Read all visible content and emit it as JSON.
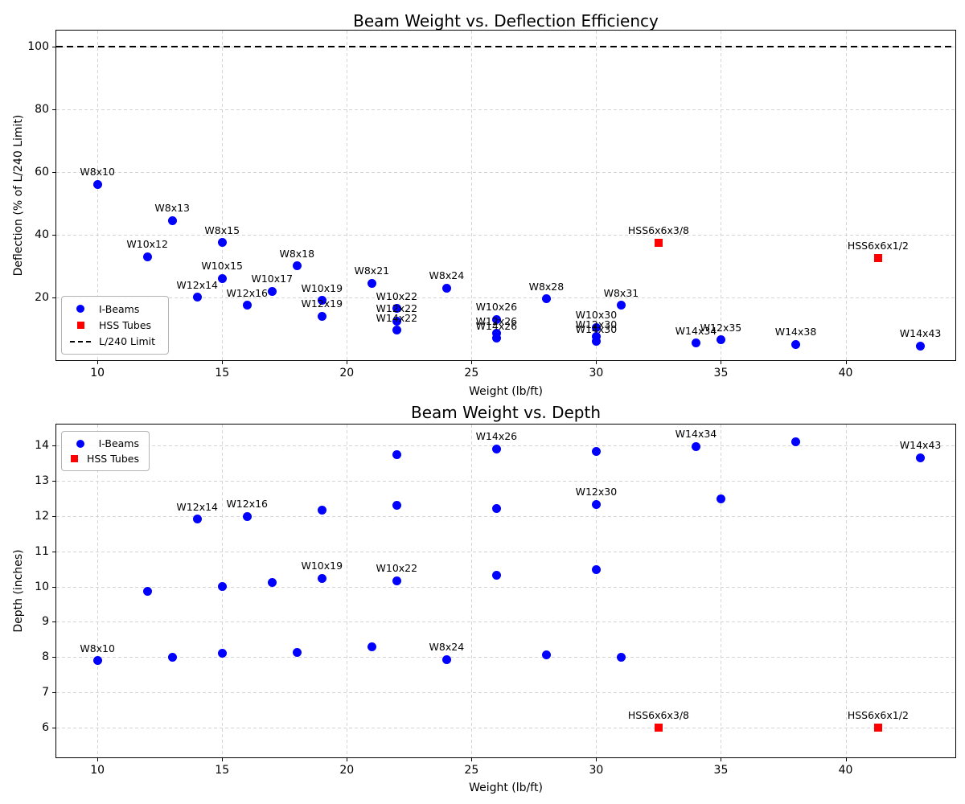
{
  "figure": {
    "background": "#ffffff"
  },
  "colors": {
    "ibeam": "#0000ff",
    "hss": "#ff0000",
    "refline": "#000000",
    "grid": "#d4d4d4"
  },
  "chart_data": {
    "type": "scatter",
    "charts": [
      {
        "id": "deflection",
        "title": "Beam Weight vs. Deflection Efficiency",
        "xlabel": "Weight (lb/ft)",
        "ylabel": "Deflection (% of L/240 Limit)",
        "x_field": "weight",
        "y_field": "deflection_pct",
        "label_mode": "all",
        "xlim": [
          8.35,
          44.4
        ],
        "ylim": [
          0,
          105
        ],
        "xticks": [
          10,
          15,
          20,
          25,
          30,
          35,
          40
        ],
        "yticks": [
          20,
          40,
          60,
          80,
          100
        ],
        "grid": true,
        "refline": {
          "y": 100,
          "label": "L/240 Limit",
          "style": "dashed",
          "color": "#000000"
        },
        "legend": {
          "position": "lower-left",
          "entries": [
            {
              "label": "I-Beams",
              "marker": "circle",
              "color": "#0000ff"
            },
            {
              "label": "HSS Tubes",
              "marker": "square",
              "color": "#ff0000"
            },
            {
              "label": "L/240 Limit",
              "marker": "dashed-line",
              "color": "#000000"
            }
          ]
        }
      },
      {
        "id": "depth",
        "title": "Beam Weight vs. Depth",
        "xlabel": "Weight (lb/ft)",
        "ylabel": "Depth (inches)",
        "x_field": "weight",
        "y_field": "depth_in",
        "label_mode": "flagged",
        "label_flag": "depth_labeled",
        "xlim": [
          8.35,
          44.4
        ],
        "ylim": [
          5.15,
          14.6
        ],
        "xticks": [
          10,
          15,
          20,
          25,
          30,
          35,
          40
        ],
        "yticks": [
          6,
          7,
          8,
          9,
          10,
          11,
          12,
          13,
          14
        ],
        "grid": true,
        "refline": null,
        "legend": {
          "position": "upper-left",
          "entries": [
            {
              "label": "I-Beams",
              "marker": "circle",
              "color": "#0000ff"
            },
            {
              "label": "HSS Tubes",
              "marker": "square",
              "color": "#ff0000"
            }
          ]
        }
      }
    ],
    "series": [
      {
        "name": "I-Beams",
        "marker": "circle",
        "color": "#0000ff",
        "points": [
          {
            "name": "W8x10",
            "weight": 10,
            "deflection_pct": 56,
            "depth_in": 7.89,
            "depth_labeled": true
          },
          {
            "name": "W10x12",
            "weight": 12,
            "deflection_pct": 33,
            "depth_in": 9.87,
            "depth_labeled": false
          },
          {
            "name": "W8x13",
            "weight": 13,
            "deflection_pct": 44.5,
            "depth_in": 7.99,
            "depth_labeled": false
          },
          {
            "name": "W12x14",
            "weight": 14,
            "deflection_pct": 20,
            "depth_in": 11.91,
            "depth_labeled": true
          },
          {
            "name": "W8x15",
            "weight": 15,
            "deflection_pct": 37.5,
            "depth_in": 8.11,
            "depth_labeled": false
          },
          {
            "name": "W10x15",
            "weight": 15,
            "deflection_pct": 26,
            "depth_in": 9.99,
            "depth_labeled": false
          },
          {
            "name": "W12x16",
            "weight": 16,
            "deflection_pct": 17.5,
            "depth_in": 11.99,
            "depth_labeled": true
          },
          {
            "name": "W10x17",
            "weight": 17,
            "deflection_pct": 22,
            "depth_in": 10.11,
            "depth_labeled": false
          },
          {
            "name": "W8x18",
            "weight": 18,
            "deflection_pct": 30,
            "depth_in": 8.14,
            "depth_labeled": false
          },
          {
            "name": "W10x19",
            "weight": 19,
            "deflection_pct": 19,
            "depth_in": 10.24,
            "depth_labeled": true
          },
          {
            "name": "W12x19",
            "weight": 19,
            "deflection_pct": 14,
            "depth_in": 12.16,
            "depth_labeled": false
          },
          {
            "name": "W8x21",
            "weight": 21,
            "deflection_pct": 24.5,
            "depth_in": 8.28,
            "depth_labeled": false
          },
          {
            "name": "W10x22",
            "weight": 22,
            "deflection_pct": 16.5,
            "depth_in": 10.17,
            "depth_labeled": true
          },
          {
            "name": "W12x22",
            "weight": 22,
            "deflection_pct": 12.5,
            "depth_in": 12.31,
            "depth_labeled": false
          },
          {
            "name": "W14x22",
            "weight": 22,
            "deflection_pct": 9.5,
            "depth_in": 13.74,
            "depth_labeled": false
          },
          {
            "name": "W8x24",
            "weight": 24,
            "deflection_pct": 23,
            "depth_in": 7.93,
            "depth_labeled": true
          },
          {
            "name": "W10x26",
            "weight": 26,
            "deflection_pct": 13,
            "depth_in": 10.33,
            "depth_labeled": false
          },
          {
            "name": "W12x26",
            "weight": 26,
            "deflection_pct": 8.5,
            "depth_in": 12.22,
            "depth_labeled": false
          },
          {
            "name": "W14x26",
            "weight": 26,
            "deflection_pct": 7,
            "depth_in": 13.91,
            "depth_labeled": true
          },
          {
            "name": "W8x28",
            "weight": 28,
            "deflection_pct": 19.5,
            "depth_in": 8.06,
            "depth_labeled": false
          },
          {
            "name": "W10x30",
            "weight": 30,
            "deflection_pct": 10.5,
            "depth_in": 10.47,
            "depth_labeled": false
          },
          {
            "name": "W12x30",
            "weight": 30,
            "deflection_pct": 7.5,
            "depth_in": 12.34,
            "depth_labeled": true
          },
          {
            "name": "W14x30",
            "weight": 30,
            "deflection_pct": 6,
            "depth_in": 13.84,
            "depth_labeled": false
          },
          {
            "name": "W8x31",
            "weight": 31,
            "deflection_pct": 17.5,
            "depth_in": 8.0,
            "depth_labeled": false
          },
          {
            "name": "W14x34",
            "weight": 34,
            "deflection_pct": 5.5,
            "depth_in": 13.98,
            "depth_labeled": true
          },
          {
            "name": "W12x35",
            "weight": 35,
            "deflection_pct": 6.5,
            "depth_in": 12.5,
            "depth_labeled": false
          },
          {
            "name": "W14x38",
            "weight": 38,
            "deflection_pct": 5,
            "depth_in": 14.1,
            "depth_labeled": false
          },
          {
            "name": "W14x43",
            "weight": 43,
            "deflection_pct": 4.5,
            "depth_in": 13.66,
            "depth_labeled": true
          }
        ]
      },
      {
        "name": "HSS Tubes",
        "marker": "square",
        "color": "#ff0000",
        "points": [
          {
            "name": "HSS6x6x3/8",
            "weight": 32.5,
            "deflection_pct": 37.5,
            "depth_in": 6.0,
            "depth_labeled": true
          },
          {
            "name": "HSS6x6x1/2",
            "weight": 41.3,
            "deflection_pct": 32.5,
            "depth_in": 6.0,
            "depth_labeled": true
          }
        ]
      }
    ]
  }
}
